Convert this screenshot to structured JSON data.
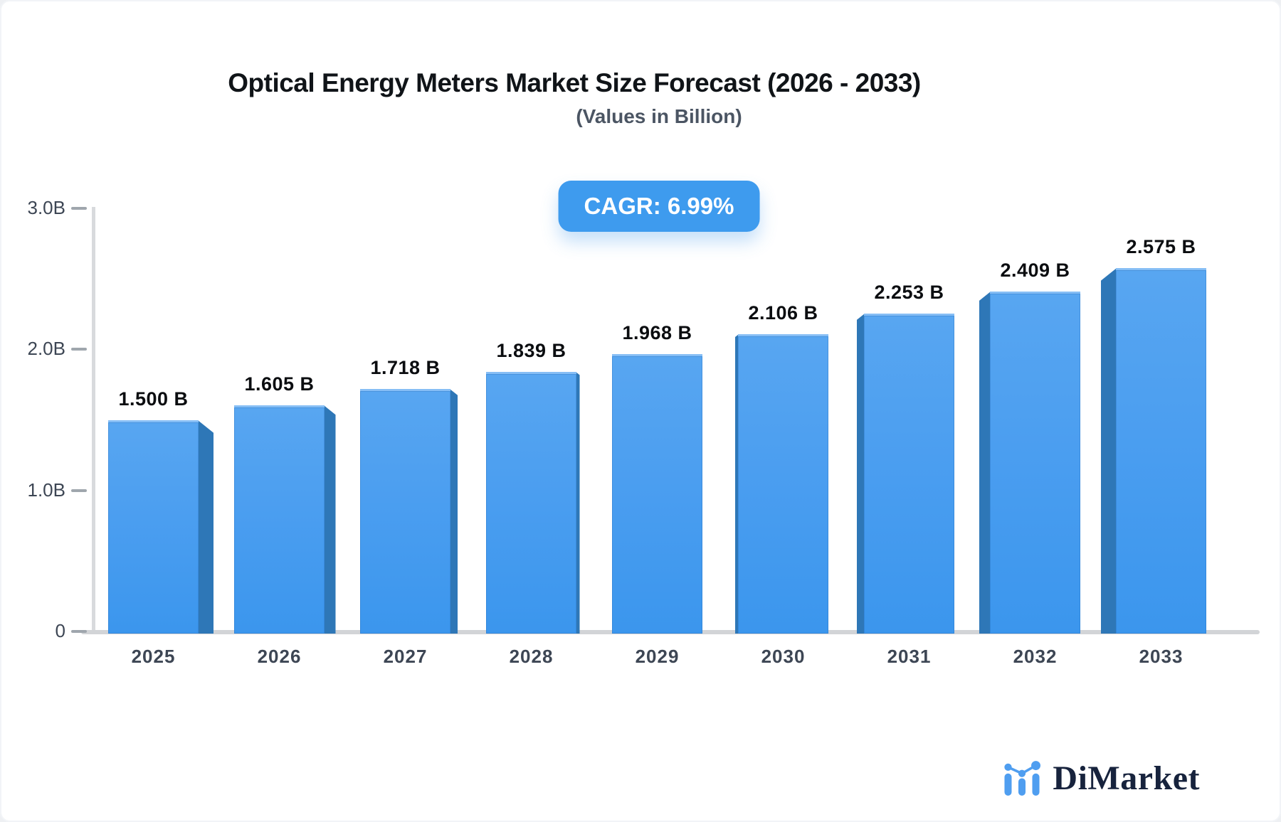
{
  "chart_data": {
    "type": "bar",
    "title": "Optical Energy Meters Market Size Forecast (2026 - 2033)",
    "subtitle": "(Values in Billion)",
    "annotation_cagr": "CAGR: 6.99%",
    "categories": [
      "2025",
      "2026",
      "2027",
      "2028",
      "2029",
      "2030",
      "2031",
      "2032",
      "2033"
    ],
    "values": [
      1.5,
      1.605,
      1.718,
      1.839,
      1.968,
      2.106,
      2.253,
      2.409,
      2.575
    ],
    "value_labels": [
      "1.500 B",
      "1.605 B",
      "1.718 B",
      "1.839 B",
      "1.968 B",
      "2.106 B",
      "2.253 B",
      "2.409 B",
      "2.575 B"
    ],
    "xlabel": "",
    "ylabel": "",
    "ylim": [
      0,
      3
    ],
    "yticks": [
      {
        "label": "3.0B",
        "value": 3.0
      },
      {
        "label": "2.0B",
        "value": 2.0
      },
      {
        "label": "1.0B",
        "value": 1.0
      },
      {
        "label": "0",
        "value": 0.0
      }
    ],
    "grid": false,
    "legend": false,
    "bar_style": "3d-perspective, shadow side faces away from center bar"
  },
  "colors": {
    "bar_top": "#58a6f1",
    "bar_mid": "#4b9ef0",
    "bar_bottom": "#3b96ed",
    "bar_side": "#2e77b7",
    "badge_bg": "#3e9bee",
    "axis_gray": "#d2d4d7",
    "logo_blue": "#4f9ef0",
    "logo_navy": "#17233d"
  },
  "logo": {
    "brand": "DiMarket",
    "icon": "bar-line-chart-icon"
  }
}
